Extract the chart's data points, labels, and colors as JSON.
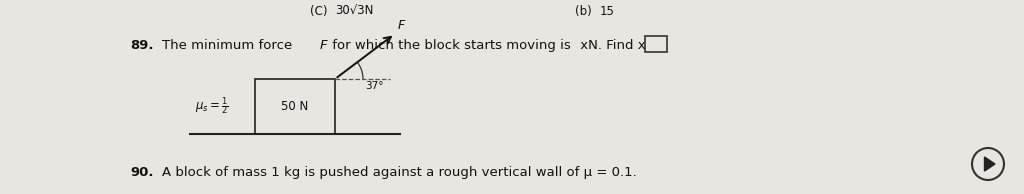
{
  "bg_color": "#e8e6e0",
  "text_color": "#111111",
  "q89_number": "89.",
  "q90_number": "90.",
  "q90_text": "A block of mass 1 kg is pushed against a rough vertical wall of μ = 0.1.",
  "block_label": "50 N",
  "angle_label": "37°",
  "force_label": "F",
  "top_left_text": "(C)",
  "top_left_val": "30√3N",
  "top_mid_text": "(b)",
  "top_mid_val": "15",
  "figw": 10.24,
  "figh": 1.94,
  "dpi": 100
}
